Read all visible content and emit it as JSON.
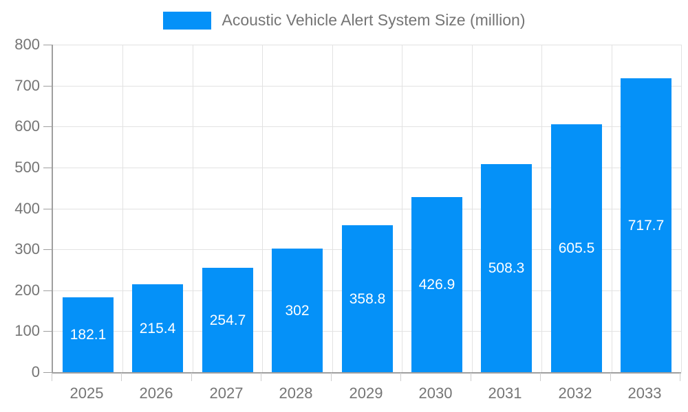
{
  "chart_data": {
    "type": "bar",
    "title": "Acoustic Vehicle Alert System Size (million)",
    "categories": [
      "2025",
      "2026",
      "2027",
      "2028",
      "2029",
      "2030",
      "2031",
      "2032",
      "2033"
    ],
    "values": [
      182.1,
      215.4,
      254.7,
      302,
      358.8,
      426.9,
      508.3,
      605.5,
      717.7
    ],
    "value_labels": [
      "182.1",
      "215.4",
      "254.7",
      "302",
      "358.8",
      "426.9",
      "508.3",
      "605.5",
      "717.7"
    ],
    "y_tick_labels": [
      "0",
      "100",
      "200",
      "300",
      "400",
      "500",
      "600",
      "700",
      "800"
    ],
    "y_ticks": [
      0,
      100,
      200,
      300,
      400,
      500,
      600,
      700,
      800
    ],
    "ylim": [
      0,
      800
    ],
    "xlabel": "",
    "ylabel": "",
    "grid": true,
    "legend_position": "top",
    "colors": {
      "bar": "#0591f8",
      "value_label": "#ffffff",
      "axis_text": "#757575",
      "axis_line": "#9e9e9e",
      "gridline": "#e2e2e2"
    }
  }
}
